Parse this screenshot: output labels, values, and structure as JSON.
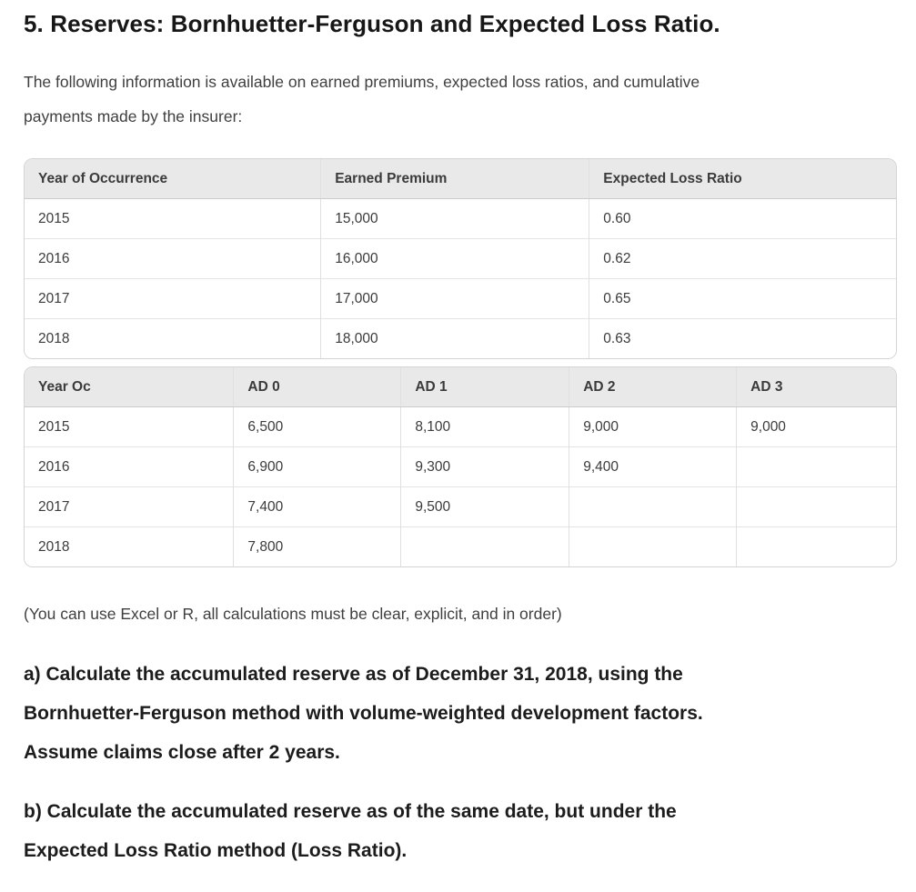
{
  "title": "5. Reserves: Bornhuetter-Ferguson and Expected Loss Ratio.",
  "intro": "The following information is available on earned premiums, expected loss ratios, and cumulative\npayments made by the insurer:",
  "premium_table": {
    "headers": [
      "Year of Occurrence",
      "Earned Premium",
      "Expected Loss Ratio"
    ],
    "rows": [
      [
        "2015",
        "15,000",
        "0.60"
      ],
      [
        "2016",
        "16,000",
        "0.62"
      ],
      [
        "2017",
        "17,000",
        "0.65"
      ],
      [
        "2018",
        "18,000",
        "0.63"
      ]
    ]
  },
  "development_table": {
    "headers": [
      "Year Oc",
      "AD 0",
      "AD 1",
      "AD 2",
      "AD 3"
    ],
    "rows": [
      [
        "2015",
        "6,500",
        "8,100",
        "9,000",
        "9,000"
      ],
      [
        "2016",
        "6,900",
        "9,300",
        "9,400",
        ""
      ],
      [
        "2017",
        "7,400",
        "9,500",
        "",
        ""
      ],
      [
        "2018",
        "7,800",
        "",
        "",
        ""
      ]
    ]
  },
  "note": "(You can use Excel or R, all calculations must be clear, explicit, and in order)",
  "question_a": "a) Calculate the accumulated reserve as of December 31, 2018, using the\nBornhuetter-Ferguson method with volume-weighted development factors.\nAssume claims close after 2 years.",
  "question_b": "b) Calculate the accumulated reserve as of the same date, but under the\nExpected Loss Ratio method (Loss Ratio).",
  "colors": {
    "header_bg": "#e9e9e9",
    "outer_border": "#d4d4d4",
    "row_border": "#e4e4e4",
    "table_text": "#3b3b3b",
    "title_text": "#171717",
    "body_text": "#3f3f3f",
    "question_text": "#1c1c1c"
  }
}
